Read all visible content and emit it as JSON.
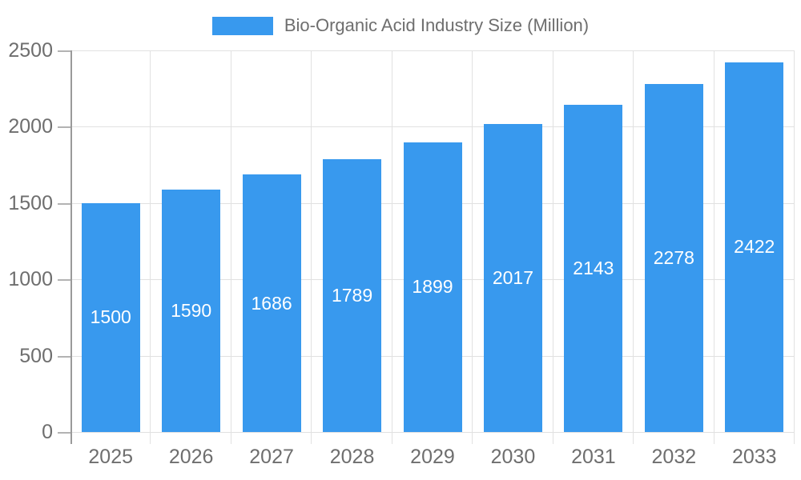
{
  "chart_data": {
    "type": "bar",
    "legend_label": "Bio-Organic Acid Industry Size (Million)",
    "legend_position": "top",
    "categories": [
      "2025",
      "2026",
      "2027",
      "2028",
      "2029",
      "2030",
      "2031",
      "2032",
      "2033"
    ],
    "values": [
      1500,
      1590,
      1686,
      1789,
      1899,
      2017,
      2143,
      2278,
      2422
    ],
    "title": "",
    "xlabel": "",
    "ylabel": "",
    "ylim": [
      0,
      2500
    ],
    "yticks": [
      0,
      500,
      1000,
      1500,
      2000,
      2500
    ],
    "grid": true,
    "bar_labels_inside": true,
    "colors": {
      "bar": "#3899EE",
      "bar_label": "#FFFFFF",
      "grid": "#E1E1E1",
      "axis_line": "#9A9A9A",
      "axis_tick": "#B3B3B3",
      "axis_text": "#6E6E6E",
      "background": "#FFFFFF"
    }
  }
}
